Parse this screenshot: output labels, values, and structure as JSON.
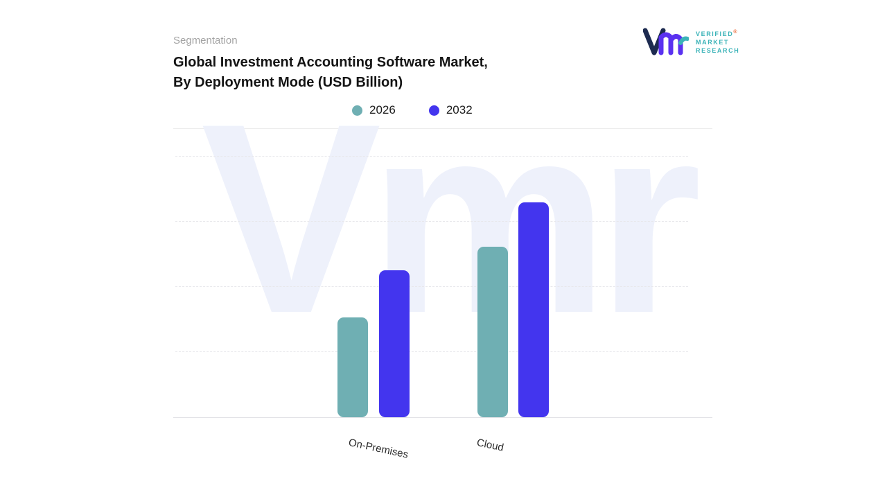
{
  "header": {
    "eyebrow": "Segmentation",
    "title_line1": "Global Investment Accounting Software Market,",
    "title_line2": "By Deployment Mode (USD Billion)"
  },
  "logo": {
    "line1": "VERIFIED",
    "line2": "MARKET",
    "line3": "RESEARCH",
    "registered_mark": "®",
    "text_color": "#3bb3b8",
    "v_color": "#1d2b50",
    "m_color": "#5a31f0"
  },
  "watermark": {
    "text": "Vmr",
    "color": "#eef1fb"
  },
  "chart_data": {
    "type": "bar",
    "title": "Global Investment Accounting Software Market, By Deployment Mode (USD Billion)",
    "ylabel": "USD Billion",
    "xlabel": "",
    "categories": [
      "On-Premises",
      "Cloud"
    ],
    "series": [
      {
        "name": "2026",
        "color": "#6fafb3",
        "values": [
          3.8,
          6.5
        ]
      },
      {
        "name": "2032",
        "color": "#4335ee",
        "values": [
          5.6,
          8.2
        ]
      }
    ],
    "ylim": [
      0,
      10
    ],
    "grid": "dashed-horizontal",
    "legend_position": "top"
  }
}
